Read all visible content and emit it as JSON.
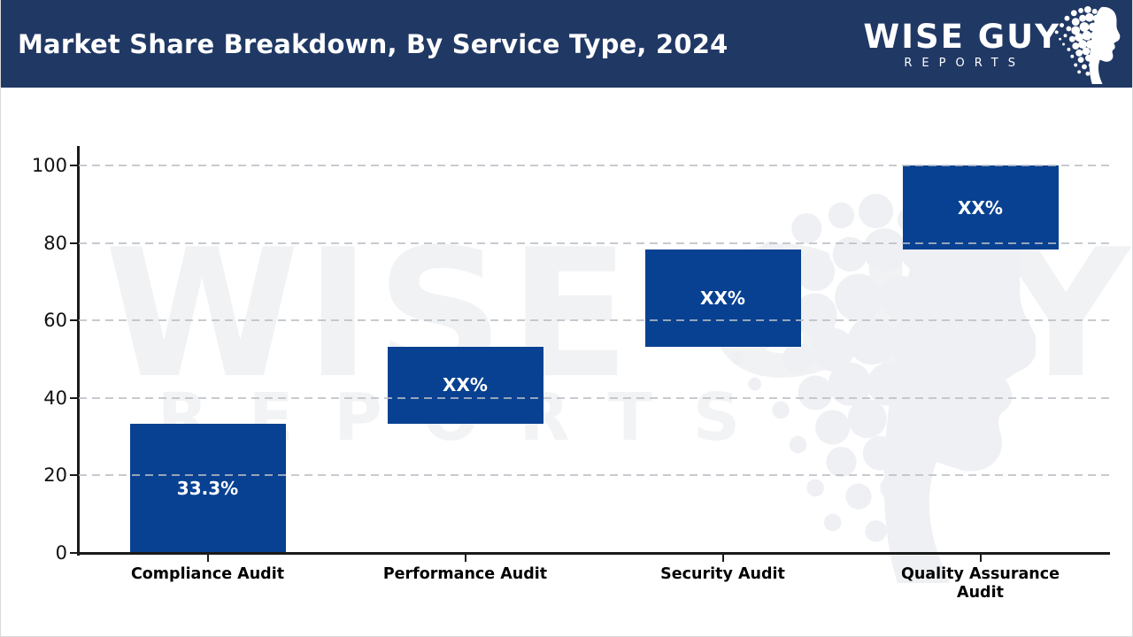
{
  "header": {
    "title": "Market Share Breakdown, By Service Type, 2024",
    "bg_color": "#203864"
  },
  "logo": {
    "brand": "WISE GUY",
    "sub": "REPORTS"
  },
  "watermark": {
    "brand": "WISE GUY",
    "sub": "REPORTS"
  },
  "chart_data": {
    "type": "bar",
    "subtype": "waterfall",
    "title": "Market Share Breakdown, By Service Type, 2024",
    "categories": [
      "Compliance Audit",
      "Performance Audit",
      "Security Audit",
      "Quality Assurance Audit"
    ],
    "segments": [
      {
        "category": "Compliance Audit",
        "start": 0,
        "end": 33.3,
        "label": "33.3%"
      },
      {
        "category": "Performance Audit",
        "start": 33.3,
        "end": 53.3,
        "label": "XX%"
      },
      {
        "category": "Security Audit",
        "start": 53.3,
        "end": 78.2,
        "label": "XX%"
      },
      {
        "category": "Quality Assurance Audit",
        "start": 78.2,
        "end": 100,
        "label": "XX%"
      }
    ],
    "yticks": [
      0,
      20,
      40,
      60,
      80,
      100
    ],
    "ylim": [
      0,
      105
    ],
    "xlabel": "",
    "ylabel": "",
    "bar_color": "#084191",
    "grid": "horizontal-dashed",
    "legend": "none"
  }
}
